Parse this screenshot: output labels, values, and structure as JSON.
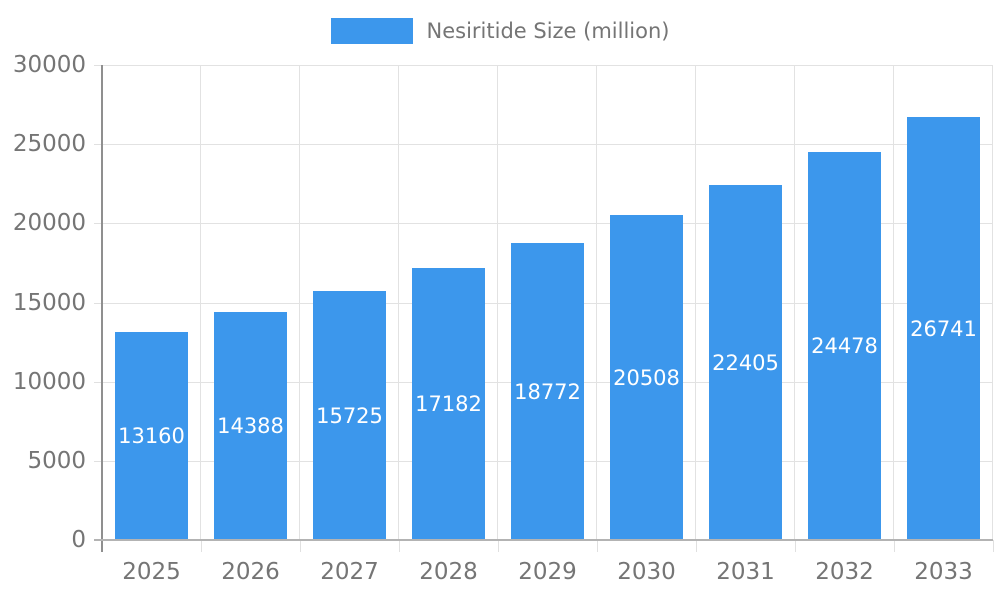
{
  "chart_data": {
    "type": "bar",
    "legend": "Nesiritide Size (million)",
    "categories": [
      "2025",
      "2026",
      "2027",
      "2028",
      "2029",
      "2030",
      "2031",
      "2032",
      "2033"
    ],
    "series": [
      {
        "name": "Nesiritide Size (million)",
        "values": [
          13160,
          14388,
          15725,
          17182,
          18772,
          20508,
          22405,
          24478,
          26741
        ]
      }
    ],
    "xlabel": "",
    "ylabel": "",
    "ylim": [
      0,
      30000
    ],
    "yticks": [
      0,
      5000,
      10000,
      15000,
      20000,
      25000,
      30000
    ],
    "grid": "horizontal and vertical light gray gridlines",
    "legend_position": "top-center",
    "value_label_position": "inside-center"
  },
  "colors": {
    "bar": "#3c97ec",
    "axis_text": "#757575",
    "value_label_text": "#ffffff",
    "gridline": "#e2e2e2",
    "tick": "#e0e0e0",
    "y_axis_line": "#8f8f8f",
    "x_axis_line": "#b3b3b3",
    "background": "#ffffff"
  }
}
